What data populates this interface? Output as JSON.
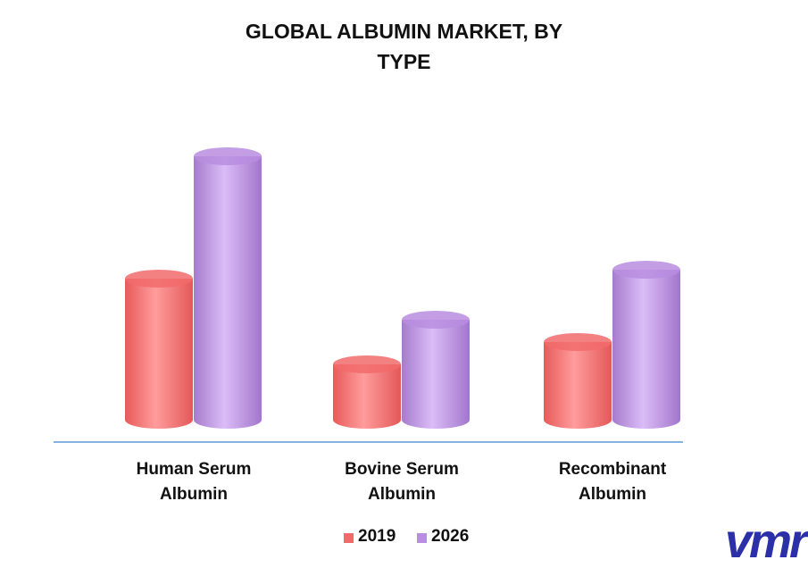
{
  "chart_data": {
    "type": "bar",
    "title": "GLOBAL ALBUMIN MARKET, BY TYPE",
    "categories": [
      "Human Serum Albumin",
      "Bovine Serum Albumin",
      "Recombinant Albumin"
    ],
    "series": [
      {
        "name": "2019",
        "color": "#f26b6b",
        "values": [
          158,
          62,
          87
        ]
      },
      {
        "name": "2026",
        "color": "#b98de0",
        "values": [
          295,
          112,
          168
        ]
      }
    ],
    "legend": "bottom",
    "logo": "vmr"
  }
}
